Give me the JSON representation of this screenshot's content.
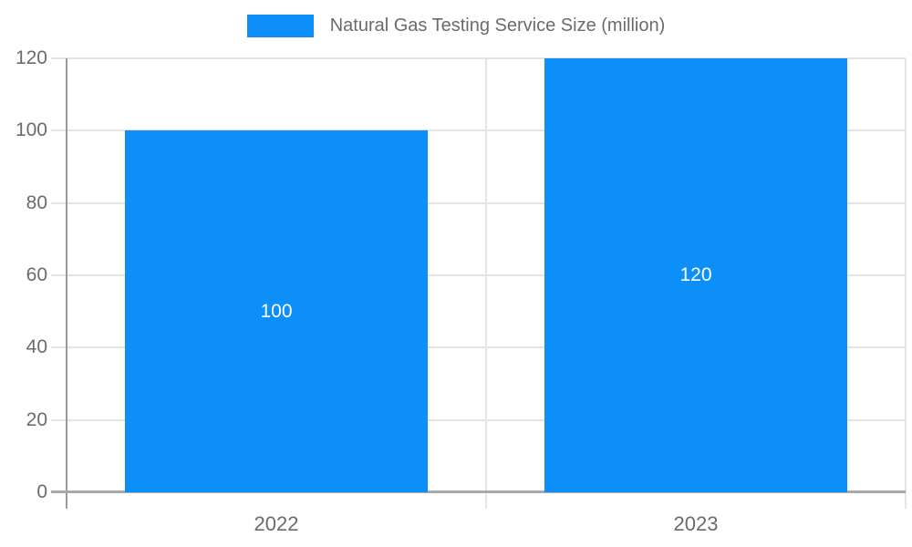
{
  "legend": {
    "label": "Natural Gas Testing Service Size (million)"
  },
  "chart_data": {
    "type": "bar",
    "title": "Natural Gas Testing Service Size (million)",
    "categories": [
      "2022",
      "2023"
    ],
    "series": [
      {
        "name": "Natural Gas Testing Service Size (million)",
        "values": [
          100,
          120
        ]
      }
    ],
    "values": [
      100,
      120
    ],
    "bar_labels": [
      "100",
      "120"
    ],
    "xlabel": "",
    "ylabel": "",
    "ylim": [
      0,
      120
    ],
    "yticks": [
      0,
      20,
      40,
      60,
      80,
      100,
      120
    ],
    "grid": true,
    "legend_position": "top",
    "colors": {
      "bar": "#0d8ff9",
      "gridline": "#e4e4e4",
      "axis_line": "#9a9a9a",
      "baseline": "#a8a8a8",
      "tick_text": "#6b6b6b",
      "bar_value_text": "#ffffff",
      "background": "#ffffff"
    }
  }
}
